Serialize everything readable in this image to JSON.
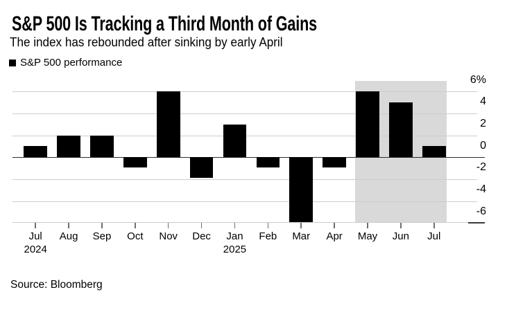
{
  "chart_data": {
    "type": "bar",
    "title": "S&P 500 Is Tracking a Third Month of Gains",
    "subtitle": "The index has rebounded after sinking by early April",
    "legend": [
      {
        "label": "S&P 500 performance",
        "swatch": "black-square",
        "color": "#000000"
      }
    ],
    "source": "Source: Bloomberg",
    "unit": "%",
    "categories": [
      "Jul",
      "Aug",
      "Sep",
      "Oct",
      "Nov",
      "Dec",
      "Jan",
      "Feb",
      "Mar",
      "Apr",
      "May",
      "Jun",
      "Jul"
    ],
    "year_labels": [
      {
        "index": 0,
        "label": "2024"
      },
      {
        "index": 6,
        "label": "2025"
      }
    ],
    "values": [
      1.0,
      2.0,
      2.0,
      -0.9,
      6.0,
      -1.9,
      3.0,
      -0.9,
      -5.9,
      -0.9,
      6.0,
      5.0,
      1.0
    ],
    "y_axis": {
      "side": "right",
      "ticks": [
        6,
        4,
        2,
        0,
        -2,
        -4,
        -6
      ],
      "tick_labels": [
        "6%",
        "4",
        "2",
        "0",
        "-2",
        "-4",
        "-6"
      ],
      "range": [
        -6,
        7
      ],
      "grid": true
    },
    "highlight_band": {
      "start_index": 10,
      "end_index": 12,
      "color": "#d9d9d9"
    },
    "colors": {
      "bar": "#000000",
      "gridline": "#d9d9d9",
      "gridline_on_band": "#cccccc",
      "zero_line": "#2b2b2b",
      "x_tick": "#6e6e6e",
      "background": "#ffffff",
      "text": "#000000"
    }
  }
}
